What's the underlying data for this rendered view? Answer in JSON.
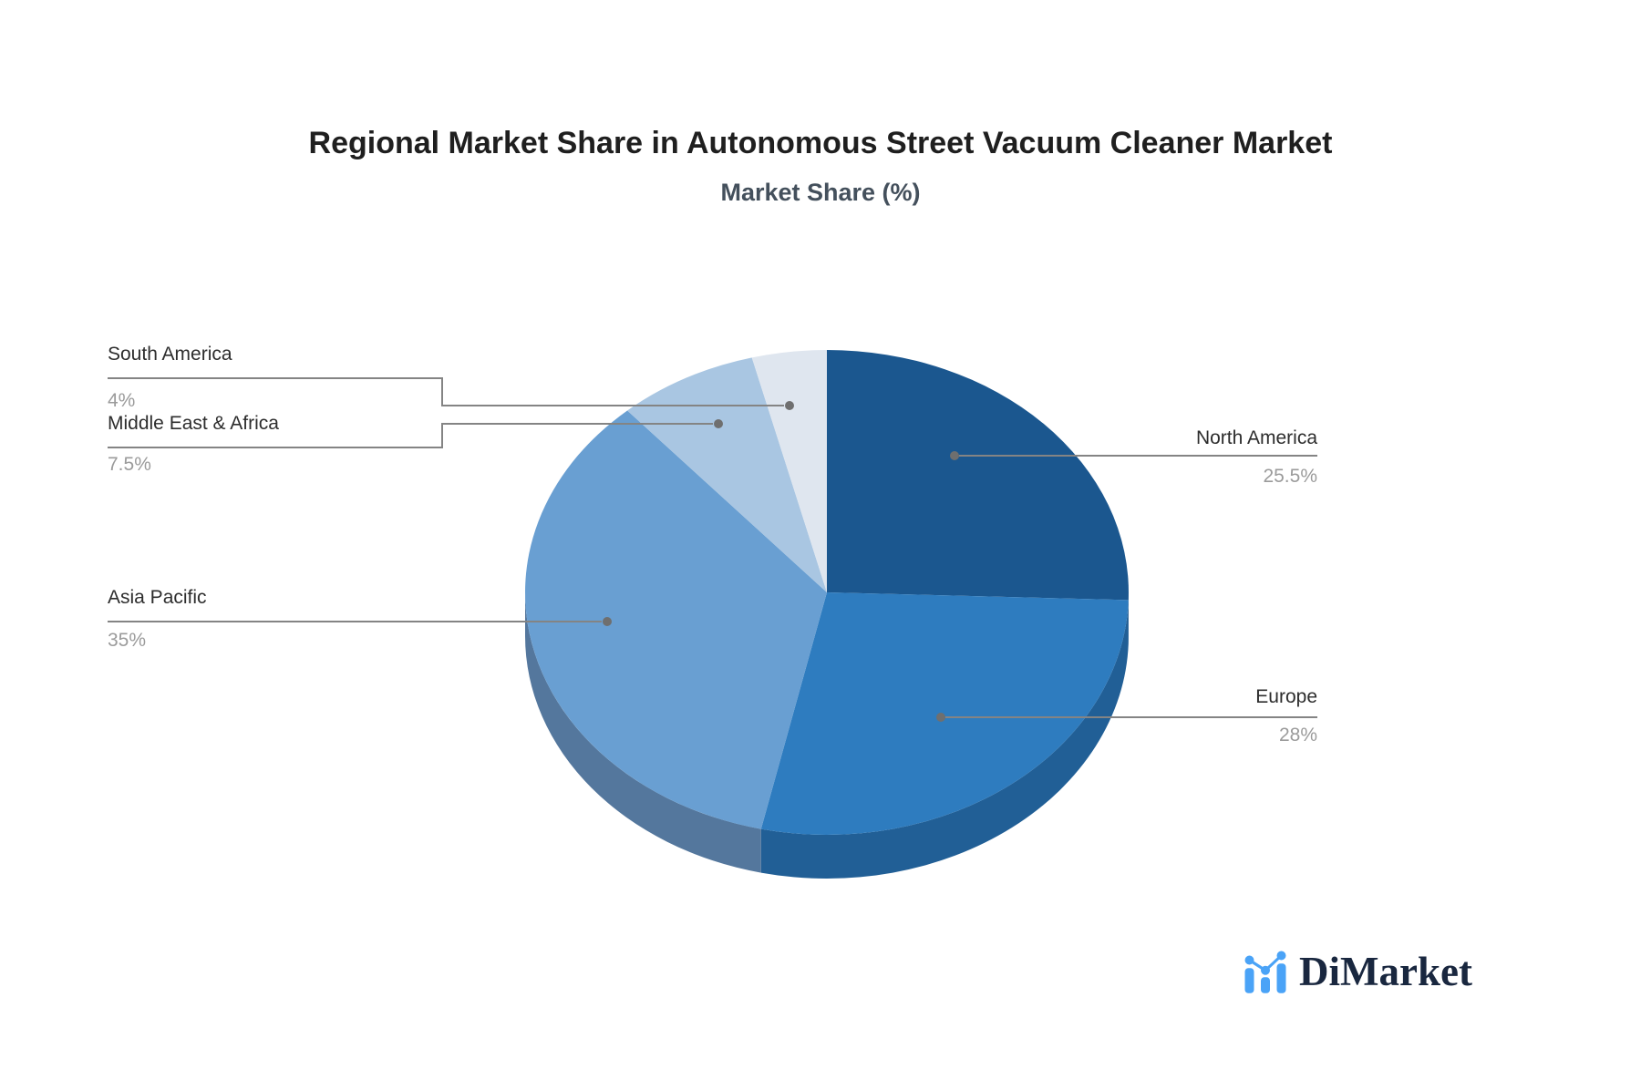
{
  "chart_data": {
    "type": "pie",
    "title": "Regional Market Share in Autonomous Street Vacuum Cleaner Market",
    "subtitle": "Market Share (%)",
    "unit": "%",
    "direction": "clockwise",
    "start_angle_deg": 0,
    "effect": "3d-depth",
    "legend_position": "callout-labels",
    "slices": [
      {
        "label": "North America",
        "value": 25.5,
        "display": "25.5%",
        "color": "#1b578f",
        "side_color": "#164a7c"
      },
      {
        "label": "Europe",
        "value": 28,
        "display": "28%",
        "color": "#2e7cbf",
        "side_color": "#215f96"
      },
      {
        "label": "Asia Pacific",
        "value": 35,
        "display": "35%",
        "color": "#699fd2",
        "side_color": "#54779d"
      },
      {
        "label": "Middle East & Africa",
        "value": 7.5,
        "display": "7.5%",
        "color": "#a9c6e2",
        "side_color": "#8aa6c4"
      },
      {
        "label": "South America",
        "value": 4,
        "display": "4%",
        "color": "#dfe6ef",
        "side_color": "#b9c3cf"
      }
    ]
  },
  "colors": {
    "background": "#ffffff",
    "title_text": "#1f1f1f",
    "subtitle_text": "#44505c",
    "label_text": "#2d2d2d",
    "percent_text": "#9b9b9b",
    "connector_line": "#848484",
    "connector_dot": "#6f6f6f"
  },
  "branding": {
    "logo_text": "DiMarket",
    "logo_icon": "bar-chart-trend-icon",
    "logo_icon_color": "#4aa3f7",
    "logo_text_color": "#19273f"
  }
}
